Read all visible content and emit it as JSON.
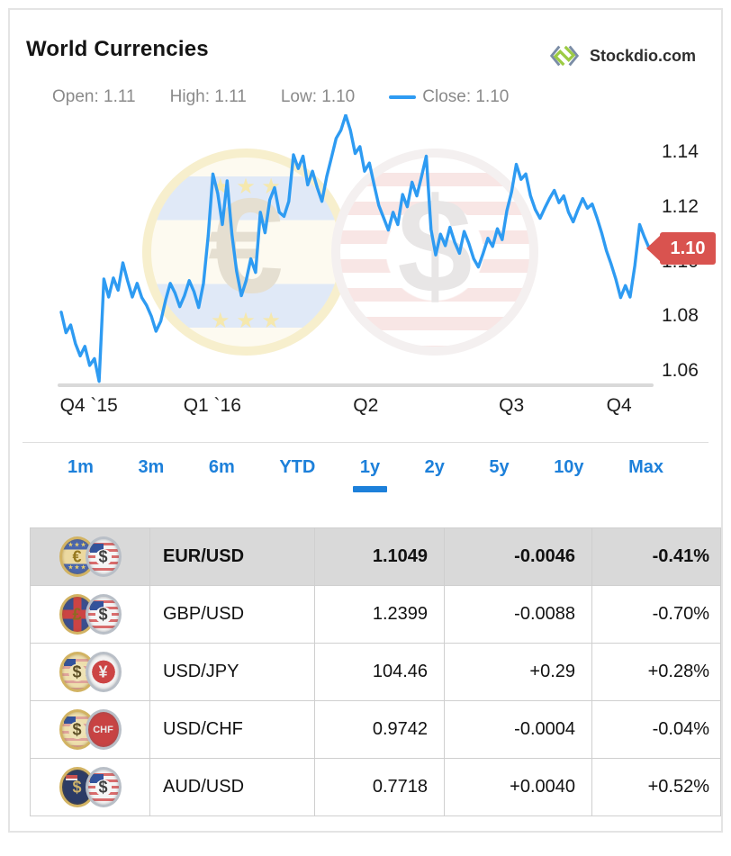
{
  "widget": {
    "title": "World Currencies",
    "brand_name": "Stockdio.com"
  },
  "legend": {
    "open_label": "Open:",
    "open_value": "1.11",
    "high_label": "High:",
    "high_value": "1.11",
    "low_label": "Low:",
    "low_value": "1.10",
    "close_label": "Close:",
    "close_value": "1.10"
  },
  "chart_data": {
    "type": "line",
    "pair": "EUR/USD",
    "selected_period": "1y",
    "line_color": "#2e9bf2",
    "grid": false,
    "legend_position": "top",
    "ylim": [
      1.0551,
      1.1538
    ],
    "y_ticks": [
      1.06,
      1.08,
      1.1,
      1.12,
      1.14
    ],
    "x_ticks": [
      {
        "label": "Q4 `15",
        "pos": 0.047
      },
      {
        "label": "Q1 `16",
        "pos": 0.257
      },
      {
        "label": "Q2",
        "pos": 0.518
      },
      {
        "label": "Q3",
        "pos": 0.766
      },
      {
        "label": "Q4",
        "pos": 0.949
      }
    ],
    "ohlc": {
      "open": 1.11,
      "high": 1.11,
      "low": 1.1,
      "close": 1.1
    },
    "last_close": 1.1049,
    "tag_label": "1.10",
    "tag_color": "#d9534f",
    "series": [
      {
        "name": "Close",
        "values": [
          1.0815,
          1.074,
          1.0768,
          1.07,
          1.0655,
          1.069,
          1.062,
          1.0645,
          1.0562,
          1.0936,
          1.087,
          1.094,
          1.0895,
          1.0995,
          1.093,
          1.087,
          1.092,
          1.0868,
          1.084,
          1.08,
          1.0745,
          1.0782,
          1.0858,
          1.092,
          1.0885,
          1.0835,
          1.0875,
          1.093,
          1.089,
          1.0832,
          1.092,
          1.1095,
          1.132,
          1.125,
          1.1135,
          1.1295,
          1.11,
          1.0965,
          1.0875,
          1.093,
          1.101,
          1.096,
          1.118,
          1.1105,
          1.1225,
          1.127,
          1.118,
          1.1165,
          1.122,
          1.139,
          1.134,
          1.1385,
          1.128,
          1.133,
          1.127,
          1.122,
          1.131,
          1.138,
          1.145,
          1.148,
          1.1535,
          1.148,
          1.1395,
          1.142,
          1.133,
          1.136,
          1.128,
          1.1205,
          1.116,
          1.1115,
          1.118,
          1.1135,
          1.1245,
          1.12,
          1.129,
          1.124,
          1.131,
          1.1385,
          1.1117,
          1.1024,
          1.11,
          1.1058,
          1.1125,
          1.107,
          1.103,
          1.111,
          1.1065,
          1.101,
          1.098,
          1.103,
          1.1085,
          1.1055,
          1.112,
          1.108,
          1.1185,
          1.1255,
          1.1355,
          1.13,
          1.132,
          1.124,
          1.119,
          1.1158,
          1.1195,
          1.123,
          1.126,
          1.1215,
          1.124,
          1.118,
          1.1145,
          1.119,
          1.123,
          1.1195,
          1.121,
          1.116,
          1.1105,
          1.104,
          1.099,
          1.0935,
          1.0868,
          1.0912,
          1.087,
          1.0985,
          1.1135,
          1.109,
          1.1049
        ]
      }
    ]
  },
  "periods": {
    "active": "1y",
    "tabs": [
      "1m",
      "3m",
      "6m",
      "YTD",
      "1y",
      "2y",
      "5y",
      "10y",
      "Max"
    ]
  },
  "coin_symbols": {
    "EUR": "€",
    "USD": "$",
    "GBP": "£",
    "JPY": "¥",
    "CHF": "CHF",
    "AUD": "$"
  },
  "table": {
    "rows": [
      {
        "pair": "EUR/USD",
        "base": "EUR",
        "quote": "USD",
        "price": "1.1049",
        "change": "-0.0046",
        "percent": "-0.41%",
        "direction": "down",
        "selected": true
      },
      {
        "pair": "GBP/USD",
        "base": "GBP",
        "quote": "USD",
        "price": "1.2399",
        "change": "-0.0088",
        "percent": "-0.70%",
        "direction": "down",
        "selected": false
      },
      {
        "pair": "USD/JPY",
        "base": "USD",
        "quote": "JPY",
        "price": "104.46",
        "change": "+0.29",
        "percent": "+0.28%",
        "direction": "up",
        "selected": false
      },
      {
        "pair": "USD/CHF",
        "base": "USD",
        "quote": "CHF",
        "price": "0.9742",
        "change": "-0.0004",
        "percent": "-0.04%",
        "direction": "down",
        "selected": false
      },
      {
        "pair": "AUD/USD",
        "base": "AUD",
        "quote": "USD",
        "price": "0.7718",
        "change": "+0.0040",
        "percent": "+0.52%",
        "direction": "up",
        "selected": false
      }
    ]
  },
  "colors": {
    "accent_blue": "#1d80da",
    "line_blue": "#2e9bf2",
    "negative": "#dd4f4f",
    "positive": "#72b872",
    "tag_red": "#d9534f"
  }
}
